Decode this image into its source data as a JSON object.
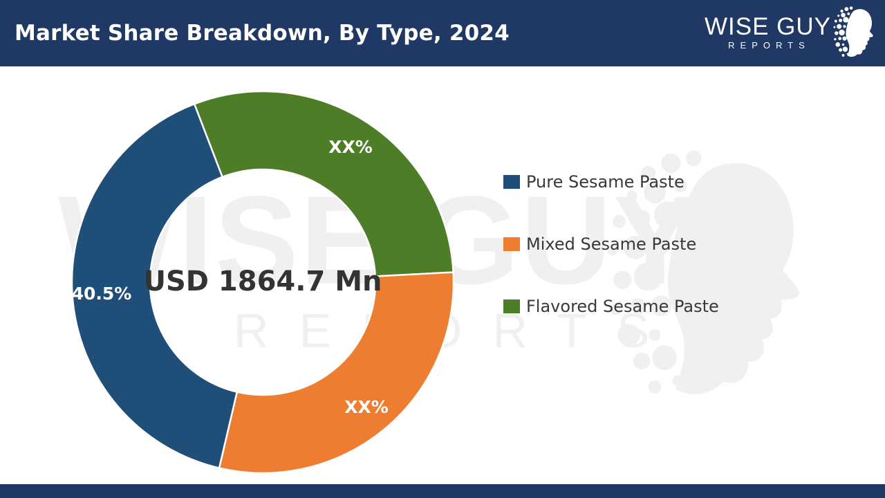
{
  "header": {
    "title": "Market Share Breakdown, By Type, 2024",
    "logo": {
      "line1": "WISE GUY",
      "line2": "REPORTS"
    }
  },
  "watermark": {
    "line1": "WISE GUY",
    "line2": "REPORTS"
  },
  "footer": {},
  "chart_data": {
    "type": "pie",
    "subtype": "donut",
    "title": "Market Share Breakdown, By Type, 2024",
    "center_label": "USD 1864.7 Mn",
    "start_angle_deg_clockwise_from_north": -21,
    "direction": "clockwise",
    "donut_hole_ratio": 0.59,
    "segments": [
      {
        "label": "Flavored Sesame Paste",
        "display_label": "XX%",
        "value_pct_estimated": 30.0,
        "color": "#4e7d28"
      },
      {
        "label": "Mixed Sesame Paste",
        "display_label": "XX%",
        "value_pct_estimated": 29.5,
        "color": "#ed7d31"
      },
      {
        "label": "Pure Sesame Paste",
        "display_label": "40.5%",
        "value_pct_estimated": 40.5,
        "color": "#1f4e79"
      }
    ],
    "legend_position": "right"
  },
  "legend": {
    "items": [
      {
        "label": "Pure Sesame Paste",
        "color": "#1f4e79"
      },
      {
        "label": "Mixed Sesame Paste",
        "color": "#ed7d31"
      },
      {
        "label": "Flavored Sesame Paste",
        "color": "#4e7d28"
      }
    ]
  },
  "colors": {
    "header_bg": "#203864",
    "footer_bg": "#203864",
    "watermark": "#f0f0f1",
    "center_text": "#333333",
    "slice_label_text": "#ffffff"
  }
}
